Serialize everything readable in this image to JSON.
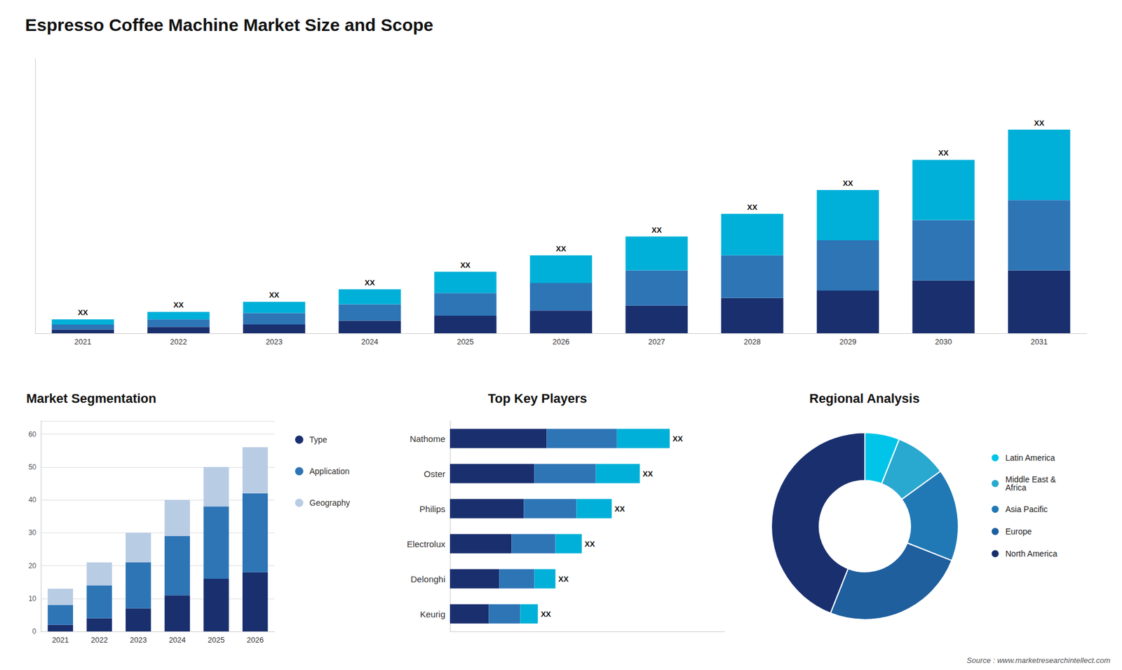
{
  "chart_data": [
    {
      "type": "bar",
      "title": "Espresso Coffee Machine Market Size and Scope",
      "categories": [
        "2021",
        "2022",
        "2023",
        "2024",
        "2025",
        "2026",
        "2027",
        "2028",
        "2029",
        "2030",
        "2031"
      ],
      "stacked": true,
      "series": [
        {
          "color": "#1a2f6e",
          "values": [
            1.5,
            2.5,
            3.5,
            5,
            7,
            9,
            11,
            14,
            17,
            21,
            25
          ]
        },
        {
          "color": "#2e75b6",
          "values": [
            2,
            3,
            4.5,
            6.5,
            9,
            11,
            14,
            17,
            20,
            24,
            28
          ]
        },
        {
          "color": "#00b0d8",
          "values": [
            2,
            3,
            4.5,
            6,
            8.5,
            11,
            13.5,
            16.5,
            20,
            24,
            28
          ]
        }
      ],
      "ylim": [
        0,
        109.35
      ],
      "tick_labels": "x",
      "grid": false,
      "annotations": [
        "XX",
        "XX",
        "XX",
        "XX",
        "XX",
        "XX",
        "XX",
        "XX",
        "XX",
        "XX",
        "XX"
      ]
    },
    {
      "type": "bar",
      "title": "Market Segmentation",
      "categories": [
        "2021",
        "2022",
        "2023",
        "2024",
        "2025",
        "2026"
      ],
      "stacked": true,
      "series": [
        {
          "name": "Type",
          "color": "#1a2f6e",
          "values": [
            2,
            4,
            7,
            11,
            16,
            18
          ]
        },
        {
          "name": "Application",
          "color": "#2e75b6",
          "values": [
            6,
            10,
            14,
            18,
            22,
            24
          ]
        },
        {
          "name": "Geography",
          "color": "#b8cce4",
          "values": [
            5,
            7,
            9,
            11,
            12,
            14
          ]
        }
      ],
      "ylim": [
        0,
        64
      ],
      "yticks": [
        0,
        10,
        20,
        30,
        40,
        50,
        60
      ],
      "grid": true,
      "legend": "right"
    },
    {
      "type": "bar",
      "orientation": "horizontal",
      "title": "Top Key Players",
      "categories": [
        "Nathome",
        "Oster",
        "Philips",
        "Electrolux",
        "Delonghi",
        "Keurig"
      ],
      "stacked": true,
      "series": [
        {
          "color": "#1a2f6e",
          "values": [
            5.5,
            4.8,
            4.2,
            3.5,
            2.8,
            2.2
          ]
        },
        {
          "color": "#2e75b6",
          "values": [
            4.0,
            3.5,
            3.0,
            2.5,
            2.0,
            1.8
          ]
        },
        {
          "color": "#00b0d8",
          "values": [
            3.0,
            2.5,
            2.0,
            1.5,
            1.2,
            1.0
          ]
        }
      ],
      "xlim": [
        0,
        15.625
      ],
      "tick_labels": "y",
      "grid": false,
      "annotations": [
        "XX",
        "XX",
        "XX",
        "XX",
        "XX",
        "XX"
      ]
    },
    {
      "type": "pie",
      "title": "Regional Analysis",
      "categories": [
        "Latin America",
        "Middle East &\nAfrica",
        "Asia Pacific",
        "Europe",
        "North America"
      ],
      "values": [
        6,
        9,
        16,
        25,
        44
      ],
      "colors": [
        "#00c5e8",
        "#29a8d0",
        "#2079b5",
        "#1f5f9e",
        "#1a2f6e"
      ],
      "legend": "right",
      "annotations": [
        "Source : www.marketresearchintellect.com"
      ]
    }
  ]
}
